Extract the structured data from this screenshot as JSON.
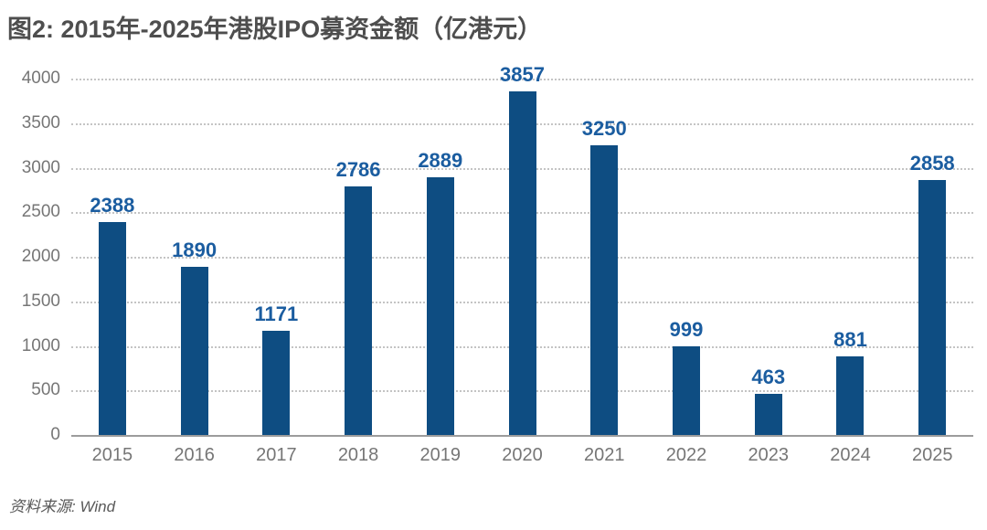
{
  "title": "图2: 2015年-2025年港股IPO募资金额（亿港元）",
  "source": "资料来源: Wind",
  "chart_data": {
    "type": "bar",
    "title": "图2: 2015年-2025年港股IPO募资金额（亿港元）",
    "categories": [
      "2015",
      "2016",
      "2017",
      "2018",
      "2019",
      "2020",
      "2021",
      "2022",
      "2023",
      "2024",
      "2025"
    ],
    "values": [
      2388,
      1890,
      1171,
      2786,
      2889,
      3857,
      3250,
      999,
      463,
      881,
      2858
    ],
    "xlabel": "",
    "ylabel": "",
    "ylim": [
      0,
      4000
    ],
    "ytick_step": 500,
    "yticks": [
      0,
      500,
      1000,
      1500,
      2000,
      2500,
      3000,
      3500,
      4000
    ],
    "grid": "horizontal-dotted",
    "legend_position": "none",
    "data_labels": true,
    "colors": {
      "bar": "#0E4D82",
      "value_label": "#1B5DA0",
      "axis_label": "#767676",
      "gridline": "#C4C4C4",
      "baseline": "#9C9C9C",
      "title": "#4E4E4E",
      "source": "#595959"
    },
    "source": "资料来源: Wind"
  }
}
